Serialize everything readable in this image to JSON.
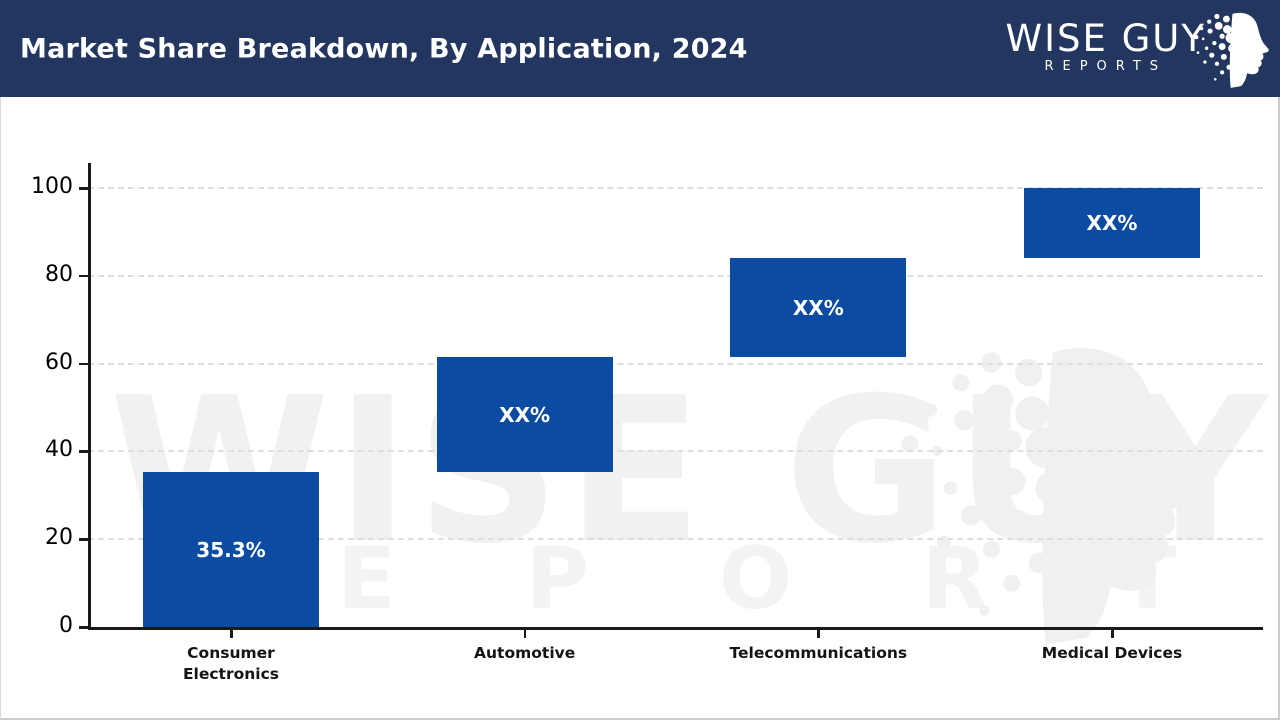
{
  "header": {
    "title": "Market Share Breakdown, By Application, 2024",
    "logo": {
      "brand": "WISE GUY",
      "sub": "REPORTS"
    }
  },
  "watermark": {
    "brand": "WISE GUY",
    "sub": "R E P O R T S"
  },
  "colors": {
    "header_bg": "#22365f",
    "bar": "#0b4ba2",
    "grid": "#dedede",
    "axis": "#1a1a1a",
    "bar_label_text": "#ffffff",
    "watermark": "#f1f1f1"
  },
  "chart_data": {
    "type": "bar",
    "subtype": "waterfall-segments",
    "title": "Market Share Breakdown, By Application, 2024",
    "categories": [
      "Consumer Electronics",
      "Automotive",
      "Telecommunications",
      "Medical Devices"
    ],
    "segments": [
      {
        "category": "Consumer Electronics",
        "tick_label": "Consumer\nElectronics",
        "start": 0,
        "end": 35.3,
        "label": "35.3%"
      },
      {
        "category": "Automotive",
        "tick_label": "Automotive",
        "start": 35.3,
        "end": 61.5,
        "label": "XX%"
      },
      {
        "category": "Telecommunications",
        "tick_label": "Telecommunications",
        "start": 61.5,
        "end": 84,
        "label": "XX%"
      },
      {
        "category": "Medical Devices",
        "tick_label": "Medical Devices",
        "start": 84,
        "end": 100,
        "label": "XX%"
      }
    ],
    "xlabel": "",
    "ylabel": "",
    "ylim": [
      0,
      100
    ],
    "yticks": [
      0,
      20,
      40,
      60,
      80,
      100
    ],
    "grid": "horizontal-dashed",
    "legend": "none"
  }
}
